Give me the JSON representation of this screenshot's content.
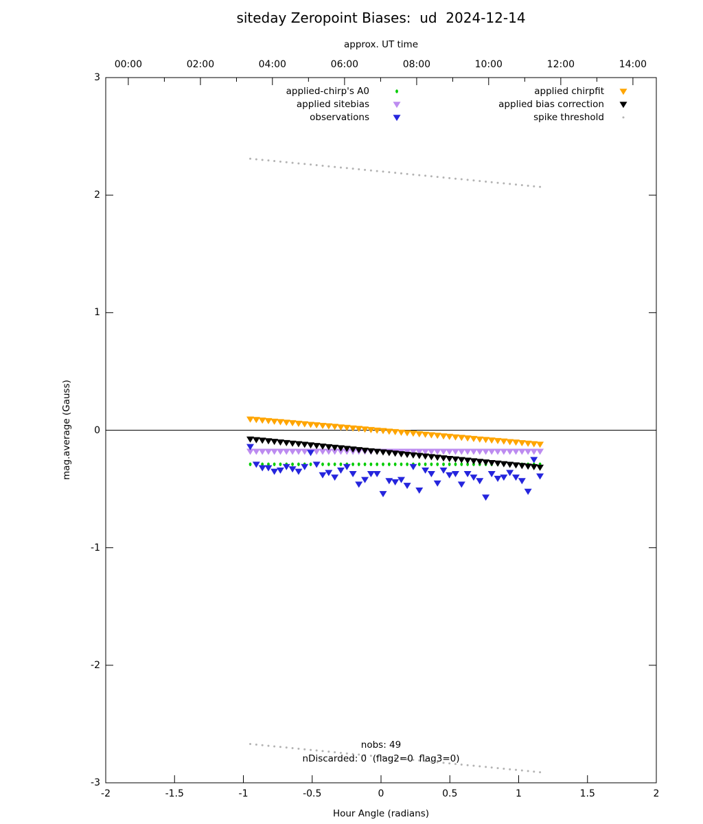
{
  "title": "siteday Zeropoint Biases:  ud  2024-12-14",
  "axes": {
    "xlim": [
      -2,
      2
    ],
    "ylim": [
      -3,
      3
    ],
    "top": {
      "label": "approx. UT time",
      "ticks": [
        {
          "label": "00:00",
          "v": -1.836
        },
        {
          "label": "02:00",
          "v": -1.312
        },
        {
          "label": "04:00",
          "v": -0.789
        },
        {
          "label": "06:00",
          "v": -0.265
        },
        {
          "label": "08:00",
          "v": 0.259
        },
        {
          "label": "10:00",
          "v": 0.782
        },
        {
          "label": "12:00",
          "v": 1.306
        },
        {
          "label": "14:00",
          "v": 1.83
        }
      ],
      "minor": [
        -1.574,
        -1.05,
        -0.527,
        -0.003,
        0.521,
        1.044,
        1.568
      ]
    },
    "bottom": {
      "label": "Hour Angle (radians)",
      "ticks": [
        {
          "label": "-2",
          "v": -2
        },
        {
          "label": "-1.5",
          "v": -1.5
        },
        {
          "label": "-1",
          "v": -1
        },
        {
          "label": "-0.5",
          "v": -0.5
        },
        {
          "label": "0",
          "v": 0
        },
        {
          "label": "0.5",
          "v": 0.5
        },
        {
          "label": "1",
          "v": 1
        },
        {
          "label": "1.5",
          "v": 1.5
        },
        {
          "label": "2",
          "v": 2
        }
      ]
    },
    "left": {
      "label": "mag.average (Gauss)",
      "ticks": [
        {
          "label": "3",
          "v": 3
        },
        {
          "label": "2",
          "v": 2
        },
        {
          "label": "1",
          "v": 1
        },
        {
          "label": "0",
          "v": 0
        },
        {
          "label": "-1",
          "v": -1
        },
        {
          "label": "-2",
          "v": -2
        },
        {
          "label": "-3",
          "v": -3
        }
      ]
    }
  },
  "legend": {
    "entries": [
      {
        "label": "applied-chirp's A0",
        "marker": "dot",
        "color": "#00cc00",
        "col": 0,
        "row": 0
      },
      {
        "label": "applied sitebias",
        "marker": "triangle-down",
        "color": "#bd8cf0",
        "col": 0,
        "row": 1
      },
      {
        "label": "observations",
        "marker": "triangle-down",
        "color": "#2525dd",
        "col": 0,
        "row": 2
      },
      {
        "label": "applied chirpfit",
        "marker": "triangle-down",
        "color": "#ffa500",
        "col": 1,
        "row": 0
      },
      {
        "label": "applied bias correction",
        "marker": "triangle-down",
        "color": "#000000",
        "col": 1,
        "row": 1
      },
      {
        "label": "spike threshold",
        "marker": "small-dot",
        "color": "#b3b3b3",
        "col": 1,
        "row": 2
      }
    ]
  },
  "chart_data": {
    "type": "scatter",
    "title": "siteday Zeropoint Biases:  ud  2024-12-14",
    "xlabel": "Hour Angle (radians)",
    "x2label": "approx. UT time",
    "ylabel": "mag.average (Gauss)",
    "xlim": [
      -2,
      2
    ],
    "ylim": [
      -3,
      3
    ],
    "grid": false,
    "legend_position": "top-inside-two-columns",
    "nobs": 49,
    "annotations": [
      "nobs: 49",
      "nDiscarded: 0  (flag2=0  flag3=0)"
    ],
    "x": [
      -0.95,
      -0.906,
      -0.862,
      -0.818,
      -0.775,
      -0.731,
      -0.687,
      -0.643,
      -0.599,
      -0.555,
      -0.511,
      -0.468,
      -0.424,
      -0.38,
      -0.336,
      -0.292,
      -0.248,
      -0.204,
      -0.161,
      -0.117,
      -0.073,
      -0.029,
      0.015,
      0.059,
      0.103,
      0.147,
      0.19,
      0.234,
      0.278,
      0.322,
      0.366,
      0.41,
      0.454,
      0.497,
      0.541,
      0.585,
      0.629,
      0.673,
      0.717,
      0.761,
      0.804,
      0.848,
      0.892,
      0.936,
      0.98,
      1.024,
      1.068,
      1.111,
      1.155
    ],
    "series": [
      {
        "name": "applied-chirp's A0",
        "marker": "dot",
        "color": "#00cc00",
        "values": [
          -0.29,
          -0.29,
          -0.29,
          -0.29,
          -0.29,
          -0.29,
          -0.29,
          -0.29,
          -0.29,
          -0.29,
          -0.29,
          -0.29,
          -0.29,
          -0.29,
          -0.29,
          -0.29,
          -0.29,
          -0.29,
          -0.29,
          -0.29,
          -0.29,
          -0.29,
          -0.29,
          -0.29,
          -0.29,
          -0.29,
          -0.29,
          -0.29,
          -0.29,
          -0.29,
          -0.29,
          -0.29,
          -0.29,
          -0.29,
          -0.29,
          -0.29,
          -0.29,
          -0.29,
          -0.29,
          -0.29,
          -0.29,
          -0.29,
          -0.29,
          -0.29,
          -0.29,
          -0.29,
          -0.29,
          -0.29,
          -0.29
        ]
      },
      {
        "name": "applied chirpfit",
        "marker": "triangle-down",
        "color": "#ffa500",
        "values": [
          0.094,
          0.09,
          0.085,
          0.081,
          0.076,
          0.072,
          0.067,
          0.063,
          0.058,
          0.054,
          0.049,
          0.045,
          0.04,
          0.036,
          0.032,
          0.027,
          0.023,
          0.018,
          0.014,
          0.009,
          0.005,
          0.0,
          -0.004,
          -0.009,
          -0.013,
          -0.018,
          -0.022,
          -0.026,
          -0.031,
          -0.035,
          -0.04,
          -0.044,
          -0.049,
          -0.053,
          -0.058,
          -0.062,
          -0.067,
          -0.071,
          -0.076,
          -0.08,
          -0.084,
          -0.089,
          -0.093,
          -0.098,
          -0.102,
          -0.107,
          -0.111,
          -0.116,
          -0.12
        ]
      },
      {
        "name": "applied sitebias",
        "marker": "triangle-down",
        "color": "#bd8cf0",
        "values": [
          -0.18,
          -0.18,
          -0.18,
          -0.18,
          -0.18,
          -0.18,
          -0.18,
          -0.18,
          -0.18,
          -0.18,
          -0.18,
          -0.18,
          -0.18,
          -0.18,
          -0.18,
          -0.18,
          -0.18,
          -0.18,
          -0.18,
          -0.18,
          -0.18,
          -0.18,
          -0.18,
          -0.18,
          -0.18,
          -0.18,
          -0.18,
          -0.18,
          -0.18,
          -0.18,
          -0.18,
          -0.18,
          -0.18,
          -0.18,
          -0.18,
          -0.18,
          -0.18,
          -0.18,
          -0.18,
          -0.18,
          -0.18,
          -0.18,
          -0.18,
          -0.18,
          -0.18,
          -0.18,
          -0.18,
          -0.18,
          -0.18
        ]
      },
      {
        "name": "applied bias correction",
        "marker": "triangle-down",
        "color": "#000000",
        "values": [
          -0.076,
          -0.081,
          -0.086,
          -0.091,
          -0.096,
          -0.101,
          -0.106,
          -0.111,
          -0.116,
          -0.121,
          -0.126,
          -0.131,
          -0.136,
          -0.141,
          -0.146,
          -0.151,
          -0.156,
          -0.161,
          -0.166,
          -0.171,
          -0.176,
          -0.181,
          -0.186,
          -0.191,
          -0.196,
          -0.201,
          -0.206,
          -0.211,
          -0.216,
          -0.221,
          -0.226,
          -0.231,
          -0.236,
          -0.241,
          -0.246,
          -0.251,
          -0.256,
          -0.261,
          -0.266,
          -0.271,
          -0.276,
          -0.281,
          -0.286,
          -0.291,
          -0.296,
          -0.301,
          -0.306,
          -0.311,
          -0.316
        ]
      },
      {
        "name": "observations",
        "marker": "triangle-down",
        "color": "#2525dd",
        "values": [
          -0.14,
          -0.29,
          -0.32,
          -0.32,
          -0.35,
          -0.34,
          -0.31,
          -0.33,
          -0.35,
          -0.31,
          -0.19,
          -0.29,
          -0.38,
          -0.36,
          -0.4,
          -0.34,
          -0.31,
          -0.37,
          -0.46,
          -0.42,
          -0.37,
          -0.37,
          -0.54,
          -0.43,
          -0.44,
          -0.42,
          -0.47,
          -0.31,
          -0.51,
          -0.34,
          -0.37,
          -0.45,
          -0.34,
          -0.38,
          -0.37,
          -0.46,
          -0.37,
          -0.4,
          -0.43,
          -0.57,
          -0.37,
          -0.41,
          -0.4,
          -0.36,
          -0.4,
          -0.43,
          -0.52,
          -0.25,
          -0.39
        ]
      },
      {
        "name": "spike threshold (upper)",
        "marker": "small-dot",
        "color": "#b3b3b3",
        "values": [
          2.31,
          2.305,
          2.3,
          2.295,
          2.29,
          2.285,
          2.28,
          2.275,
          2.27,
          2.265,
          2.26,
          2.255,
          2.25,
          2.245,
          2.24,
          2.235,
          2.23,
          2.225,
          2.22,
          2.215,
          2.21,
          2.205,
          2.2,
          2.195,
          2.19,
          2.185,
          2.18,
          2.175,
          2.17,
          2.165,
          2.16,
          2.155,
          2.15,
          2.145,
          2.14,
          2.135,
          2.13,
          2.125,
          2.12,
          2.115,
          2.11,
          2.105,
          2.1,
          2.095,
          2.09,
          2.085,
          2.08,
          2.075,
          2.07
        ]
      },
      {
        "name": "spike threshold (lower)",
        "marker": "small-dot",
        "color": "#b3b3b3",
        "values": [
          -2.67,
          -2.675,
          -2.68,
          -2.685,
          -2.69,
          -2.695,
          -2.7,
          -2.705,
          -2.71,
          -2.715,
          -2.72,
          -2.725,
          -2.73,
          -2.735,
          -2.74,
          -2.745,
          -2.75,
          -2.755,
          -2.76,
          -2.765,
          -2.77,
          -2.775,
          -2.78,
          -2.785,
          -2.79,
          -2.795,
          -2.8,
          -2.805,
          -2.81,
          -2.815,
          -2.82,
          -2.825,
          -2.83,
          -2.835,
          -2.84,
          -2.845,
          -2.85,
          -2.855,
          -2.86,
          -2.865,
          -2.87,
          -2.875,
          -2.88,
          -2.885,
          -2.89,
          -2.895,
          -2.9,
          -2.905,
          -2.91
        ]
      }
    ]
  }
}
